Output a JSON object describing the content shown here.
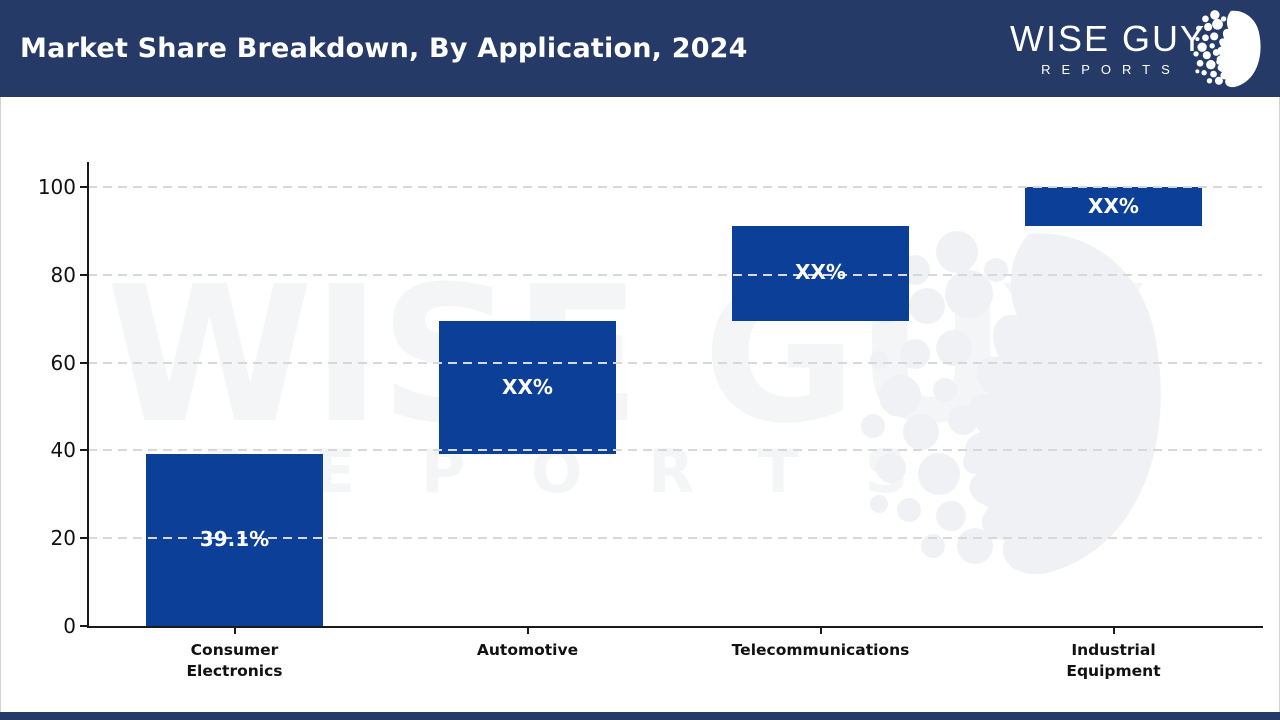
{
  "header": {
    "title": "Market Share Breakdown, By Application, 2024",
    "logo_line1": "WISE GUY",
    "logo_line2": "REPORTS"
  },
  "watermark": {
    "line1": "WISE GUY",
    "line2": "REPORTS"
  },
  "colors": {
    "header_bg": "#253a66",
    "bar": "#0c3f97",
    "gridline": "#d8d8d8",
    "axis": "#1a1a1a",
    "value_label": "#ffffff"
  },
  "chart_data": {
    "type": "bar",
    "subtype": "waterfall",
    "title": "Market Share Breakdown, By Application, 2024",
    "categories": [
      "Consumer Electronics",
      "Automotive",
      "Telecommunications",
      "Industrial Equipment"
    ],
    "category_label_lines": [
      [
        "Consumer",
        "Electronics"
      ],
      [
        "Automotive"
      ],
      [
        "Telecommunications"
      ],
      [
        "Industrial",
        "Equipment"
      ]
    ],
    "segments": [
      {
        "category": "Consumer Electronics",
        "start": 0,
        "end": 39.1,
        "label": "39.1%"
      },
      {
        "category": "Automotive",
        "start": 39.1,
        "end": 69.5,
        "label": "XX%"
      },
      {
        "category": "Telecommunications",
        "start": 69.5,
        "end": 91.1,
        "label": "XX%"
      },
      {
        "category": "Industrial Equipment",
        "start": 91.1,
        "end": 100,
        "label": "XX%"
      }
    ],
    "xlabel": "",
    "ylabel": "",
    "ylim": [
      0,
      100
    ],
    "yticks": [
      0,
      20,
      40,
      60,
      80,
      100
    ],
    "grid": "horizontal-dashed",
    "legend": "none",
    "bar_color": "#0c3f97",
    "value_label_color": "#ffffff"
  }
}
